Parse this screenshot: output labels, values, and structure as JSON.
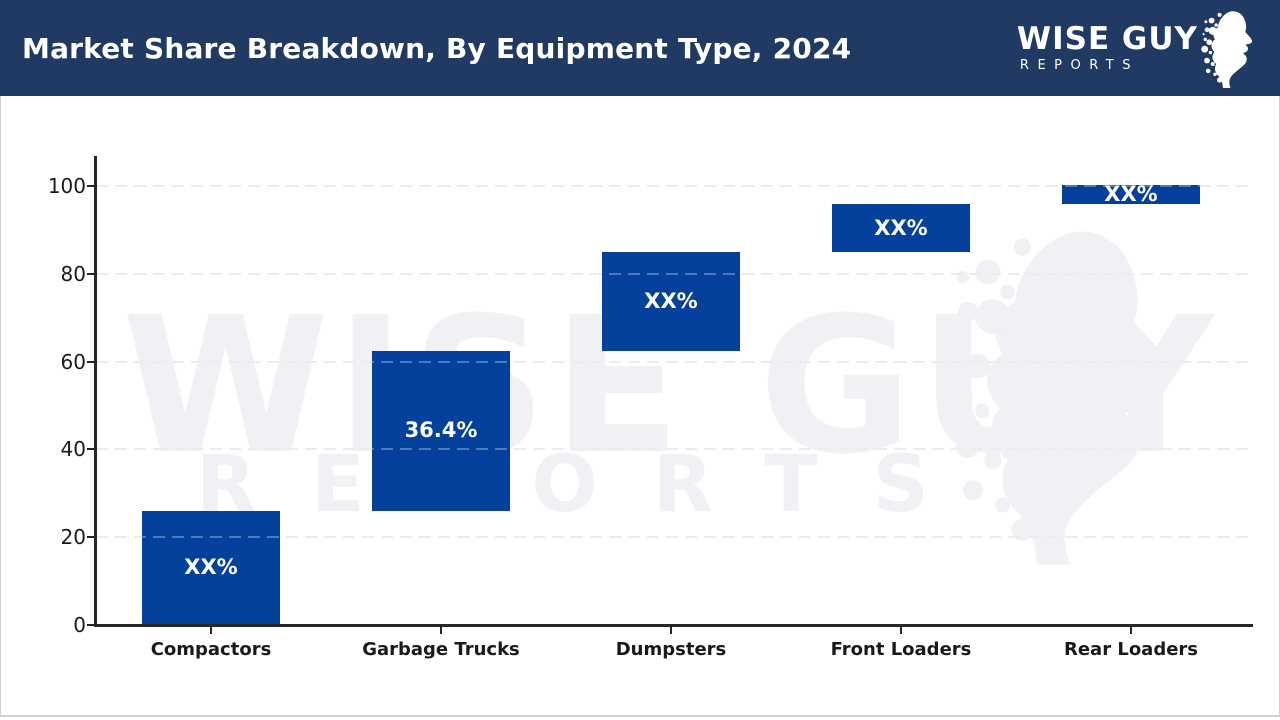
{
  "header": {
    "title": "Market Share Breakdown, By Equipment Type, 2024",
    "logo": {
      "line1": "WISE GUY",
      "line2": "REPORTS"
    }
  },
  "watermark": {
    "line1": "WISE GUY",
    "line2": "REPORTS"
  },
  "colors": {
    "header_bg": "#213a64",
    "header_text": "#ffffff",
    "logo_text": "#ffffff",
    "bar_fill": "#03419c",
    "bar_label": "#ffffff",
    "grid": "#e4e4e4",
    "grid_over_bar": "rgba(255,255,255,0.30)",
    "axis": "#262626",
    "tick_text": "#1a1a1a",
    "watermark": "#f0f1f4"
  },
  "chart_data": {
    "type": "bar",
    "subtype": "waterfall",
    "title": "Market Share Breakdown, By Equipment Type, 2024",
    "xlabel": "",
    "ylabel": "",
    "categories": [
      "Compactors",
      "Garbage Trucks",
      "Dumpsters",
      "Front Loaders",
      "Rear Loaders"
    ],
    "bars": [
      {
        "category": "Compactors",
        "start": 0,
        "end": 26,
        "value": 26,
        "label": "XX%"
      },
      {
        "category": "Garbage Trucks",
        "start": 26,
        "end": 62.4,
        "value": 36.4,
        "label": "36.4%"
      },
      {
        "category": "Dumpsters",
        "start": 62.4,
        "end": 85,
        "value": 22.6,
        "label": "XX%"
      },
      {
        "category": "Front Loaders",
        "start": 85,
        "end": 95.8,
        "value": 10.8,
        "label": "XX%"
      },
      {
        "category": "Rear Loaders",
        "start": 95.8,
        "end": 100.3,
        "value": 4.5,
        "label": "XX%"
      }
    ],
    "yticks": [
      0,
      20,
      40,
      60,
      80,
      100
    ],
    "ylim": [
      0,
      107
    ],
    "grid": "horizontal-dashed",
    "legend": "none"
  }
}
